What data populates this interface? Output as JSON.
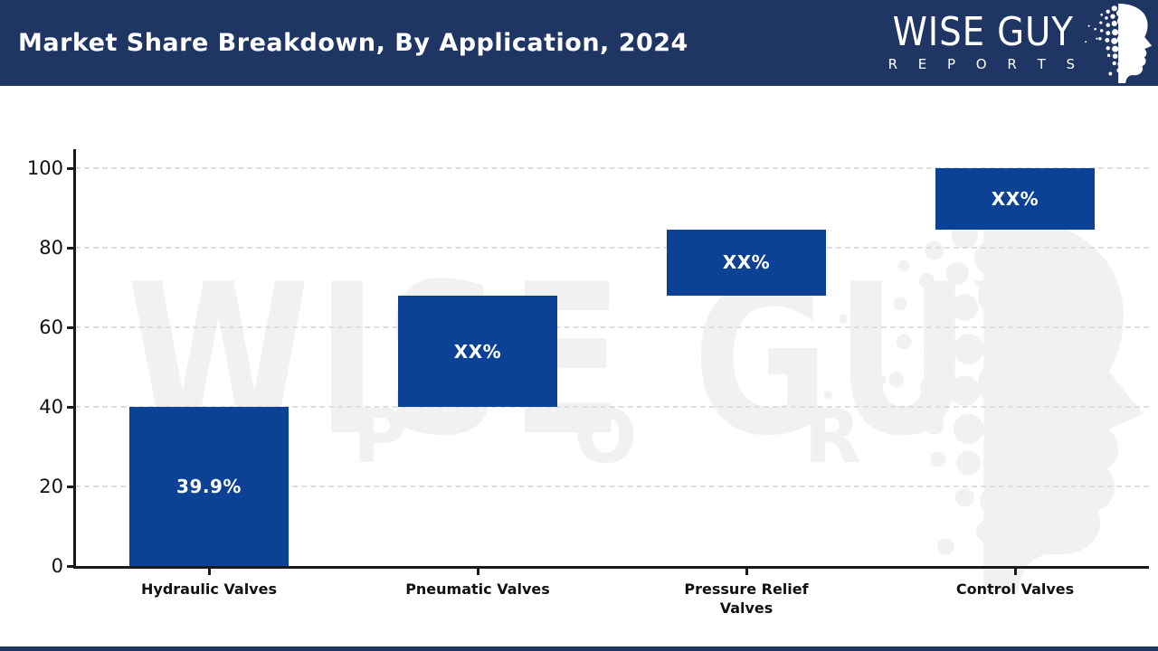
{
  "header": {
    "title": "Market Share Breakdown, By Application, 2024",
    "logo": {
      "name": "WISE GUY",
      "sub": "R E P O R T S"
    }
  },
  "watermark": {
    "line1": "WISE GUY",
    "line2": "P O R T S"
  },
  "chart_data": {
    "type": "bar",
    "subtype": "waterfall",
    "title": "Market Share Breakdown, By Application, 2024",
    "categories": [
      "Hydraulic Valves",
      "Pneumatic Valves",
      "Pressure Relief Valves",
      "Control Valves"
    ],
    "segments": [
      {
        "category": "Hydraulic Valves",
        "start": 0,
        "end": 39.9,
        "label": "39.9%"
      },
      {
        "category": "Pneumatic Valves",
        "start": 39.9,
        "end": 68,
        "label": "XX%"
      },
      {
        "category": "Pressure Relief Valves",
        "start": 68,
        "end": 84.5,
        "label": "XX%"
      },
      {
        "category": "Control Valves",
        "start": 84.5,
        "end": 100,
        "label": "XX%"
      }
    ],
    "yticks": [
      0,
      20,
      40,
      60,
      80,
      100
    ],
    "ylim": [
      0,
      105
    ],
    "xlabel": "",
    "ylabel": "",
    "grid": "horizontal-dashed",
    "legend": "none",
    "colors": {
      "bar": "#0c4296",
      "bar_label": "#ffffff",
      "axis": "#1a1a1a",
      "grid": "#dedede",
      "header_bg": "#1f3563",
      "watermark": "#f1f1f2"
    }
  }
}
